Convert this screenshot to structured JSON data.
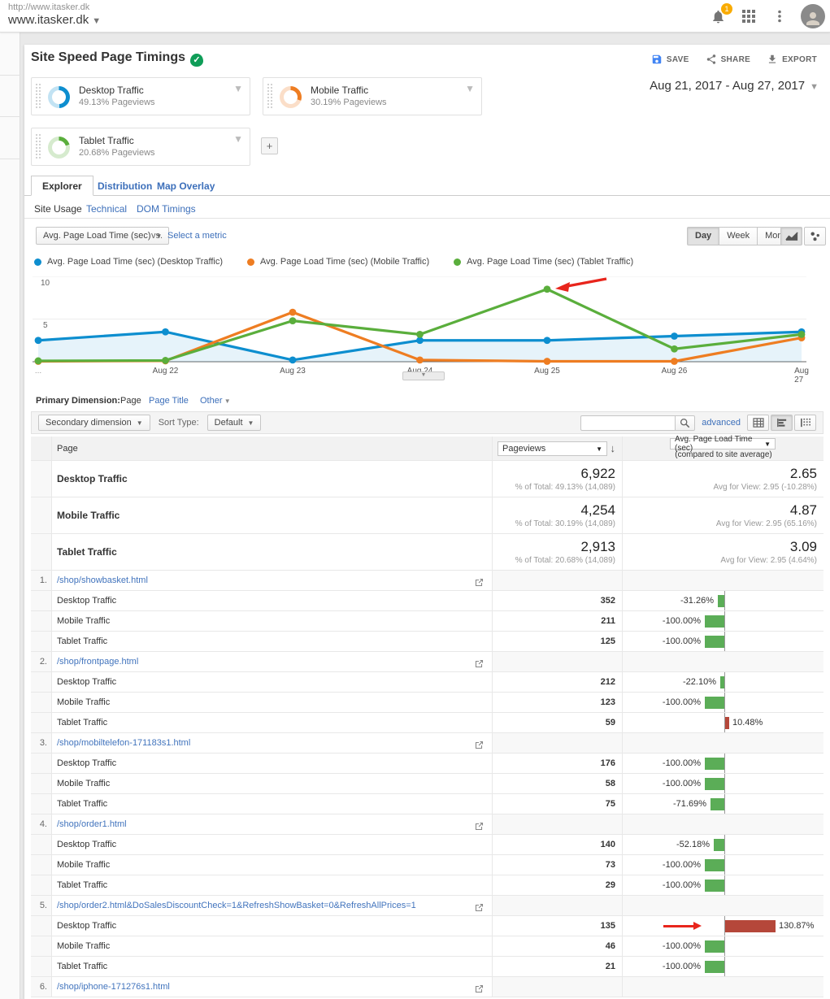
{
  "header": {
    "url_small": "http://www.itasker.dk",
    "account_name": "www.itasker.dk",
    "notification_count": "1"
  },
  "report": {
    "title": "Site Speed Page Timings",
    "save_label": "SAVE",
    "share_label": "SHARE",
    "export_label": "EXPORT",
    "date_range": "Aug 21, 2017 - Aug 27, 2017"
  },
  "segments": [
    {
      "name": "Desktop Traffic",
      "sub": "49.13% Pageviews",
      "color": "#0d8ecf",
      "pct": 49.13
    },
    {
      "name": "Mobile Traffic",
      "sub": "30.19% Pageviews",
      "color": "#ee7d22",
      "pct": 30.19
    },
    {
      "name": "Tablet Traffic",
      "sub": "20.68% Pageviews",
      "color": "#5aae3c",
      "pct": 20.68
    }
  ],
  "add_segment_label": "+",
  "tabs": [
    "Explorer",
    "Distribution",
    "Map Overlay"
  ],
  "subtabs": [
    "Site Usage",
    "Technical",
    "DOM Timings"
  ],
  "metric_bar": {
    "metric_dropdown": "Avg. Page Load Time (sec)",
    "vs": "vs.",
    "select_metric": "Select a metric",
    "granularity": [
      "Day",
      "Week",
      "Month"
    ],
    "active_granularity": "Day"
  },
  "chart_data": {
    "type": "line",
    "x": [
      "...",
      "Aug 22",
      "Aug 23",
      "Aug 24",
      "Aug 25",
      "Aug 26",
      "Aug 27"
    ],
    "ylim": [
      0,
      10
    ],
    "ytick_labels": [
      "10",
      "5"
    ],
    "grid": true,
    "legend_position": "top",
    "series": [
      {
        "name": "Avg. Page Load Time (sec) (Desktop Traffic)",
        "color": "#0d8ecf",
        "area": true,
        "values": [
          2.5,
          3.5,
          0.2,
          2.5,
          2.5,
          3.0,
          3.5
        ]
      },
      {
        "name": "Avg. Page Load Time (sec) (Mobile Traffic)",
        "color": "#ee7d22",
        "area": false,
        "values": [
          0.05,
          0.1,
          5.8,
          0.2,
          0.05,
          0.05,
          2.8
        ]
      },
      {
        "name": "Avg. Page Load Time (sec) (Tablet Traffic)",
        "color": "#5aae3c",
        "area": false,
        "values": [
          0.1,
          0.15,
          4.8,
          3.2,
          8.5,
          1.5,
          3.2
        ]
      }
    ],
    "annotation": "red arrow pointing at Tablet Traffic peak on Aug 25"
  },
  "dimension_bar": {
    "label": "Primary Dimension:",
    "options": [
      "Page",
      "Page Title",
      "Other"
    ],
    "active": "Page"
  },
  "table_controls": {
    "secondary_dimension": "Secondary dimension",
    "sort_type_label": "Sort Type:",
    "sort_type_value": "Default",
    "search_value": "",
    "advanced": "advanced"
  },
  "table": {
    "columns": {
      "page": "Page",
      "pageviews": "Pageviews",
      "metric": "Avg. Page Load Time (sec)",
      "metric_sub": "(compared to site average)"
    },
    "bar_colors": {
      "negative": "#5bad57",
      "positive": "#b5473a"
    },
    "summary_rows": [
      {
        "label": "Desktop Traffic",
        "pageviews": "6,922",
        "pageviews_sub": "% of Total: 49.13% (14,089)",
        "metric": "2.65",
        "metric_sub": "Avg for View: 2.95 (-10.28%)"
      },
      {
        "label": "Mobile Traffic",
        "pageviews": "4,254",
        "pageviews_sub": "% of Total: 30.19% (14,089)",
        "metric": "4.87",
        "metric_sub": "Avg for View: 2.95 (65.16%)"
      },
      {
        "label": "Tablet Traffic",
        "pageviews": "2,913",
        "pageviews_sub": "% of Total: 20.68% (14,089)",
        "metric": "3.09",
        "metric_sub": "Avg for View: 2.95 (4.64%)"
      }
    ],
    "rows": [
      {
        "index": "1.",
        "page": "/shop/showbasket.html",
        "entries": [
          {
            "label": "Desktop Traffic",
            "pageviews": "352",
            "pct": -31.26,
            "pct_label": "-31.26%"
          },
          {
            "label": "Mobile Traffic",
            "pageviews": "211",
            "pct": -100.0,
            "pct_label": "-100.00%"
          },
          {
            "label": "Tablet Traffic",
            "pageviews": "125",
            "pct": -100.0,
            "pct_label": "-100.00%"
          }
        ]
      },
      {
        "index": "2.",
        "page": "/shop/frontpage.html",
        "entries": [
          {
            "label": "Desktop Traffic",
            "pageviews": "212",
            "pct": -22.1,
            "pct_label": "-22.10%"
          },
          {
            "label": "Mobile Traffic",
            "pageviews": "123",
            "pct": -100.0,
            "pct_label": "-100.00%"
          },
          {
            "label": "Tablet Traffic",
            "pageviews": "59",
            "pct": 10.48,
            "pct_label": "10.48%"
          }
        ]
      },
      {
        "index": "3.",
        "page": "/shop/mobiltelefon-171183s1.html",
        "entries": [
          {
            "label": "Desktop Traffic",
            "pageviews": "176",
            "pct": -100.0,
            "pct_label": "-100.00%"
          },
          {
            "label": "Mobile Traffic",
            "pageviews": "58",
            "pct": -100.0,
            "pct_label": "-100.00%"
          },
          {
            "label": "Tablet Traffic",
            "pageviews": "75",
            "pct": -71.69,
            "pct_label": "-71.69%"
          }
        ]
      },
      {
        "index": "4.",
        "page": "/shop/order1.html",
        "entries": [
          {
            "label": "Desktop Traffic",
            "pageviews": "140",
            "pct": -52.18,
            "pct_label": "-52.18%"
          },
          {
            "label": "Mobile Traffic",
            "pageviews": "73",
            "pct": -100.0,
            "pct_label": "-100.00%"
          },
          {
            "label": "Tablet Traffic",
            "pageviews": "29",
            "pct": -100.0,
            "pct_label": "-100.00%"
          }
        ]
      },
      {
        "index": "5.",
        "page": "/shop/order2.html&DoSalesDiscountCheck=1&RefreshShowBasket=0&RefreshAllPrices=1",
        "entries": [
          {
            "label": "Desktop Traffic",
            "pageviews": "135",
            "pct": 130.87,
            "pct_label": "130.87%",
            "annotation": "red-arrow"
          },
          {
            "label": "Mobile Traffic",
            "pageviews": "46",
            "pct": -100.0,
            "pct_label": "-100.00%"
          },
          {
            "label": "Tablet Traffic",
            "pageviews": "21",
            "pct": -100.0,
            "pct_label": "-100.00%"
          }
        ]
      },
      {
        "index": "6.",
        "page": "/shop/iphone-171276s1.html",
        "entries": []
      }
    ]
  }
}
